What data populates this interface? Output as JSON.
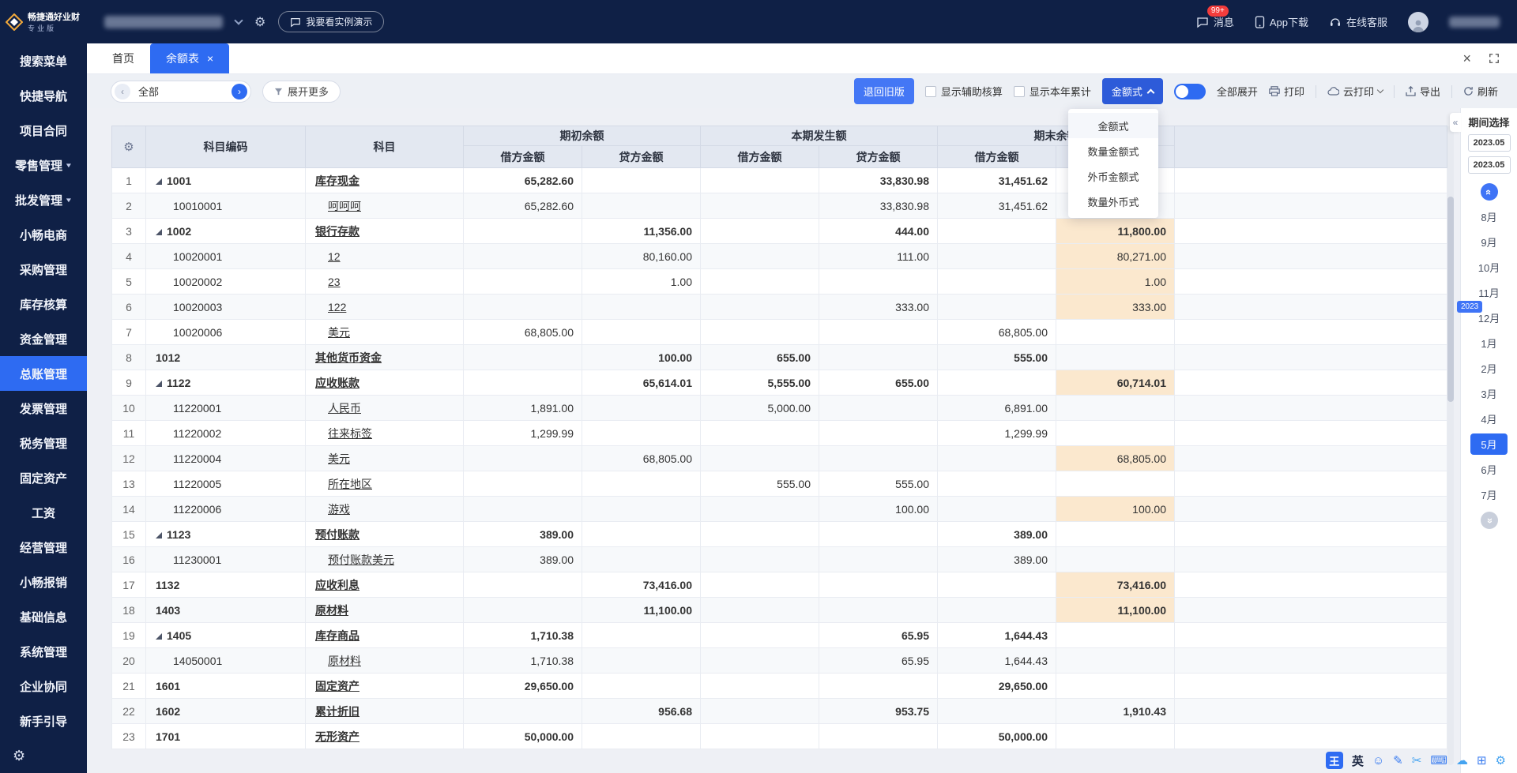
{
  "app": {
    "logo": {
      "line1": "畅捷通好业财",
      "line2": "专业版"
    },
    "topbar": {
      "demo_label": "我要看实例演示",
      "messages_label": "消息",
      "messages_badge": "99+",
      "app_download_label": "App下载",
      "online_service_label": "在线客服"
    }
  },
  "sidebar": {
    "items": [
      {
        "label": "搜索菜单"
      },
      {
        "label": "快捷导航"
      },
      {
        "label": "项目合同"
      },
      {
        "label": "零售管理",
        "caret": true
      },
      {
        "label": "批发管理",
        "caret": true
      },
      {
        "label": "小畅电商"
      },
      {
        "label": "采购管理"
      },
      {
        "label": "库存核算"
      },
      {
        "label": "资金管理"
      },
      {
        "label": "总账管理",
        "active": true
      },
      {
        "label": "发票管理"
      },
      {
        "label": "税务管理"
      },
      {
        "label": "固定资产"
      },
      {
        "label": "工资"
      },
      {
        "label": "经营管理"
      },
      {
        "label": "小畅报销"
      },
      {
        "label": "基础信息"
      },
      {
        "label": "系统管理"
      },
      {
        "label": "企业协同"
      },
      {
        "label": "新手引导"
      }
    ]
  },
  "tabs": {
    "home": "首页",
    "active_tab": "余额表"
  },
  "toolbar": {
    "account_filter": "全部",
    "expand_more": "展开更多",
    "back_to_old": "退回旧版",
    "show_aux": "显示辅助核算",
    "show_ytd": "显示本年累计",
    "amount_style": "金额式",
    "expand_all": "全部展开",
    "print": "打印",
    "cloud_print": "云打印",
    "export": "导出",
    "refresh": "刷新"
  },
  "style_dropdown": {
    "items": [
      "金额式",
      "数量金额式",
      "外币金额式",
      "数量外币式"
    ],
    "selected": "金额式"
  },
  "balance_table": {
    "headers": {
      "code": "科目编码",
      "account": "科目",
      "opening": "期初余额",
      "current": "本期发生额",
      "closing": "期末余额",
      "debit": "借方金额",
      "credit": "贷方金额"
    },
    "rows": [
      {
        "n": "1",
        "code": "1001",
        "name": "库存现金",
        "level": 0,
        "expand": true,
        "v": [
          "65,282.60",
          "",
          "",
          "33,830.98",
          "31,451.62",
          ""
        ]
      },
      {
        "n": "2",
        "code": "10010001",
        "name": "呵呵呵",
        "level": 1,
        "v": [
          "65,282.60",
          "",
          "",
          "33,830.98",
          "31,451.62",
          ""
        ]
      },
      {
        "n": "3",
        "code": "1002",
        "name": "银行存款",
        "level": 0,
        "expand": true,
        "v": [
          "",
          "11,356.00",
          "",
          "444.00",
          "",
          "11,800.00"
        ],
        "hl": [
          5
        ]
      },
      {
        "n": "4",
        "code": "10020001",
        "name": "12",
        "level": 1,
        "v": [
          "",
          "80,160.00",
          "",
          "111.00",
          "",
          "80,271.00"
        ],
        "hl": [
          5
        ]
      },
      {
        "n": "5",
        "code": "10020002",
        "name": "23",
        "level": 1,
        "v": [
          "",
          "1.00",
          "",
          "",
          "",
          "1.00"
        ],
        "hl": [
          5
        ]
      },
      {
        "n": "6",
        "code": "10020003",
        "name": "122",
        "level": 1,
        "v": [
          "",
          "",
          "",
          "333.00",
          "",
          "333.00"
        ],
        "hl": [
          5
        ]
      },
      {
        "n": "7",
        "code": "10020006",
        "name": "美元",
        "level": 1,
        "v": [
          "68,805.00",
          "",
          "",
          "",
          "68,805.00",
          ""
        ]
      },
      {
        "n": "8",
        "code": "1012",
        "name": "其他货币资金",
        "level": 0,
        "v": [
          "",
          "100.00",
          "655.00",
          "",
          "555.00",
          ""
        ]
      },
      {
        "n": "9",
        "code": "1122",
        "name": "应收账款",
        "level": 0,
        "expand": true,
        "v": [
          "",
          "65,614.01",
          "5,555.00",
          "655.00",
          "",
          "60,714.01"
        ],
        "hl": [
          5
        ]
      },
      {
        "n": "10",
        "code": "11220001",
        "name": "人民币",
        "level": 1,
        "v": [
          "1,891.00",
          "",
          "5,000.00",
          "",
          "6,891.00",
          ""
        ]
      },
      {
        "n": "11",
        "code": "11220002",
        "name": "往来标签",
        "level": 1,
        "v": [
          "1,299.99",
          "",
          "",
          "",
          "1,299.99",
          ""
        ]
      },
      {
        "n": "12",
        "code": "11220004",
        "name": "美元",
        "level": 1,
        "v": [
          "",
          "68,805.00",
          "",
          "",
          "",
          "68,805.00"
        ],
        "hl": [
          5
        ]
      },
      {
        "n": "13",
        "code": "11220005",
        "name": "所在地区",
        "level": 1,
        "v": [
          "",
          "",
          "555.00",
          "555.00",
          "",
          ""
        ]
      },
      {
        "n": "14",
        "code": "11220006",
        "name": "游戏",
        "level": 1,
        "v": [
          "",
          "",
          "",
          "100.00",
          "",
          "100.00"
        ],
        "hl": [
          5
        ]
      },
      {
        "n": "15",
        "code": "1123",
        "name": "预付账款",
        "level": 0,
        "expand": true,
        "v": [
          "389.00",
          "",
          "",
          "",
          "389.00",
          ""
        ]
      },
      {
        "n": "16",
        "code": "11230001",
        "name": "预付账款美元",
        "level": 1,
        "v": [
          "389.00",
          "",
          "",
          "",
          "389.00",
          ""
        ]
      },
      {
        "n": "17",
        "code": "1132",
        "name": "应收利息",
        "level": 0,
        "v": [
          "",
          "73,416.00",
          "",
          "",
          "",
          "73,416.00"
        ],
        "hl": [
          5
        ]
      },
      {
        "n": "18",
        "code": "1403",
        "name": "原材料",
        "level": 0,
        "v": [
          "",
          "11,100.00",
          "",
          "",
          "",
          "11,100.00"
        ],
        "hl": [
          5
        ]
      },
      {
        "n": "19",
        "code": "1405",
        "name": "库存商品",
        "level": 0,
        "expand": true,
        "v": [
          "1,710.38",
          "",
          "",
          "65.95",
          "1,644.43",
          ""
        ]
      },
      {
        "n": "20",
        "code": "14050001",
        "name": "原材料",
        "level": 1,
        "v": [
          "1,710.38",
          "",
          "",
          "65.95",
          "1,644.43",
          ""
        ]
      },
      {
        "n": "21",
        "code": "1601",
        "name": "固定资产",
        "level": 0,
        "v": [
          "29,650.00",
          "",
          "",
          "",
          "29,650.00",
          ""
        ]
      },
      {
        "n": "22",
        "code": "1602",
        "name": "累计折旧",
        "level": 0,
        "v": [
          "",
          "956.68",
          "",
          "953.75",
          "",
          "1,910.43"
        ]
      },
      {
        "n": "23",
        "code": "1701",
        "name": "无形资产",
        "level": 0,
        "v": [
          "50,000.00",
          "",
          "",
          "",
          "50,000.00",
          ""
        ]
      }
    ]
  },
  "period_panel": {
    "title": "期间选择",
    "date_start": "2023.05",
    "date_end": "2023.05",
    "year_badge": "2023",
    "months": [
      {
        "label": "8月"
      },
      {
        "label": "9月"
      },
      {
        "label": "10月"
      },
      {
        "label": "11月"
      },
      {
        "label": "12月"
      },
      {
        "label": "1月"
      },
      {
        "label": "2月"
      },
      {
        "label": "3月"
      },
      {
        "label": "4月"
      },
      {
        "label": "5月",
        "active": true
      },
      {
        "label": "6月"
      },
      {
        "label": "7月"
      }
    ]
  },
  "ime": {
    "lang_primary": "王",
    "lang_secondary": "英"
  },
  "colors": {
    "accent": "#2e6bf2",
    "navy": "#0f2046",
    "highlight": "#fbe8ce",
    "badge_red": "#f23c3c"
  }
}
